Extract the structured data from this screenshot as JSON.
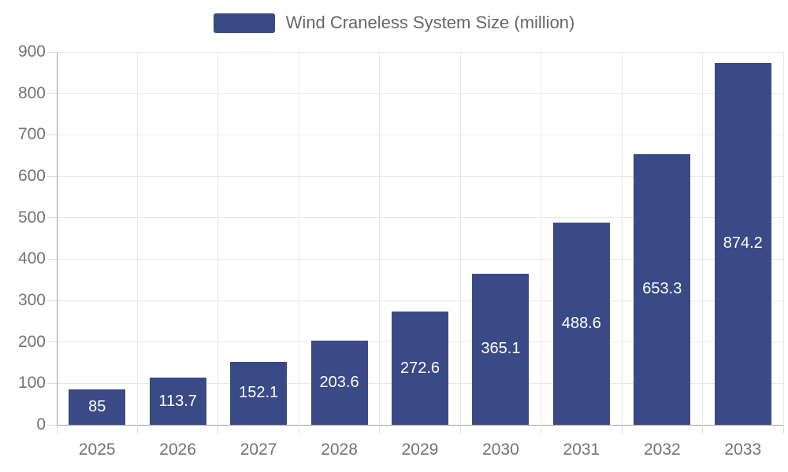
{
  "legend": {
    "label": "Wind Craneless System Size (million)"
  },
  "colors": {
    "bar": "#394a86",
    "axis_line": "#a0a0a0",
    "tick": "#dcdcdc",
    "grid": "#e8e8e8",
    "axis_label": "#737373",
    "legend_text": "#666666",
    "value_label": "#ffffff",
    "background": "#ffffff"
  },
  "chart_data": {
    "type": "bar",
    "title": "",
    "legend": "Wind Craneless System Size (million)",
    "legend_position": "top-center",
    "categories": [
      "2025",
      "2026",
      "2027",
      "2028",
      "2029",
      "2030",
      "2031",
      "2032",
      "2033"
    ],
    "values": [
      85,
      113.7,
      152.1,
      203.6,
      272.6,
      365.1,
      488.6,
      653.3,
      874.2
    ],
    "value_labels": [
      "85",
      "113.7",
      "152.1",
      "203.6",
      "272.6",
      "365.1",
      "488.6",
      "653.3",
      "874.2"
    ],
    "bar_label_position": "inside-center",
    "xlabel": "",
    "ylabel": "",
    "ylim": [
      0,
      900
    ],
    "ytick_interval": 100,
    "yticks": [
      "0",
      "100",
      "200",
      "300",
      "400",
      "500",
      "600",
      "700",
      "800",
      "900"
    ],
    "grid": true
  }
}
